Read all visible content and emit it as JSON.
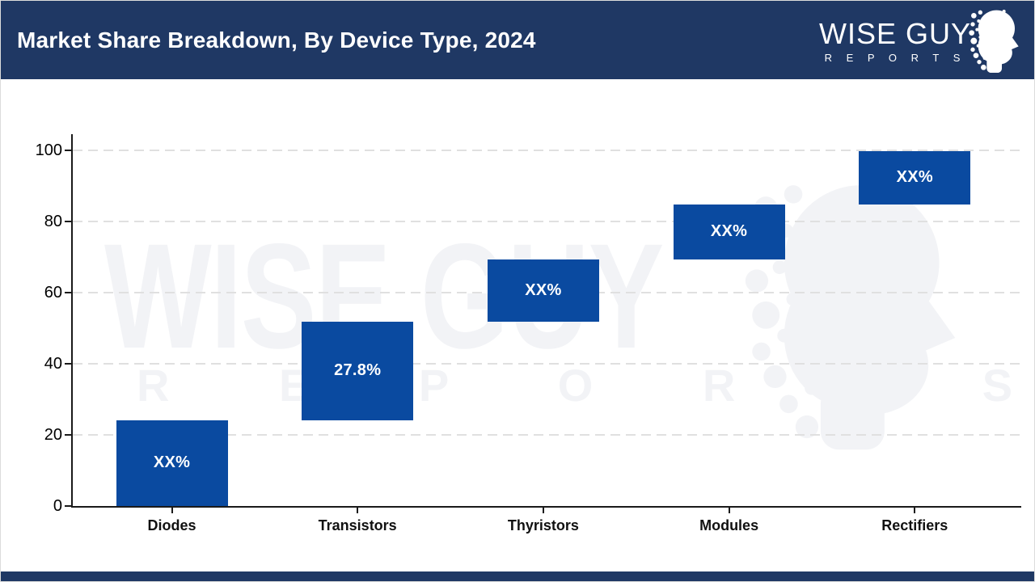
{
  "header": {
    "title": "Market Share Breakdown, By Device Type, 2024",
    "logo": {
      "line1": "WISE GUY",
      "line2": "R E P O R T S"
    }
  },
  "watermark": {
    "line1": "WISE GUY",
    "line2": "R E P O R T S"
  },
  "chart_data": {
    "type": "bar",
    "subtype": "waterfall-floating-bars",
    "title": "Market Share Breakdown, By Device Type, 2024",
    "categories": [
      "Diodes",
      "Transistors",
      "Thyristors",
      "Modules",
      "Rectifiers"
    ],
    "bars": [
      {
        "category": "Diodes",
        "start": 0,
        "end": 24.1,
        "label": "XX%"
      },
      {
        "category": "Transistors",
        "start": 24.1,
        "end": 51.9,
        "label": "27.8%"
      },
      {
        "category": "Thyristors",
        "start": 51.9,
        "end": 69.3,
        "label": "XX%"
      },
      {
        "category": "Modules",
        "start": 69.3,
        "end": 84.8,
        "label": "XX%"
      },
      {
        "category": "Rectifiers",
        "start": 84.8,
        "end": 99.8,
        "label": "XX%"
      }
    ],
    "yticks": [
      0,
      20,
      40,
      60,
      80,
      100
    ],
    "ylim": [
      0,
      104.5
    ],
    "xlabel": "",
    "ylabel": "",
    "grid": "horizontal-dashed",
    "legend": "none"
  },
  "colors": {
    "navy": "#1f3864",
    "bar": "#0a4aa0",
    "grid": "#e0e0e0",
    "axis": "#1a1a1a",
    "wm": "#f2f3f6"
  }
}
